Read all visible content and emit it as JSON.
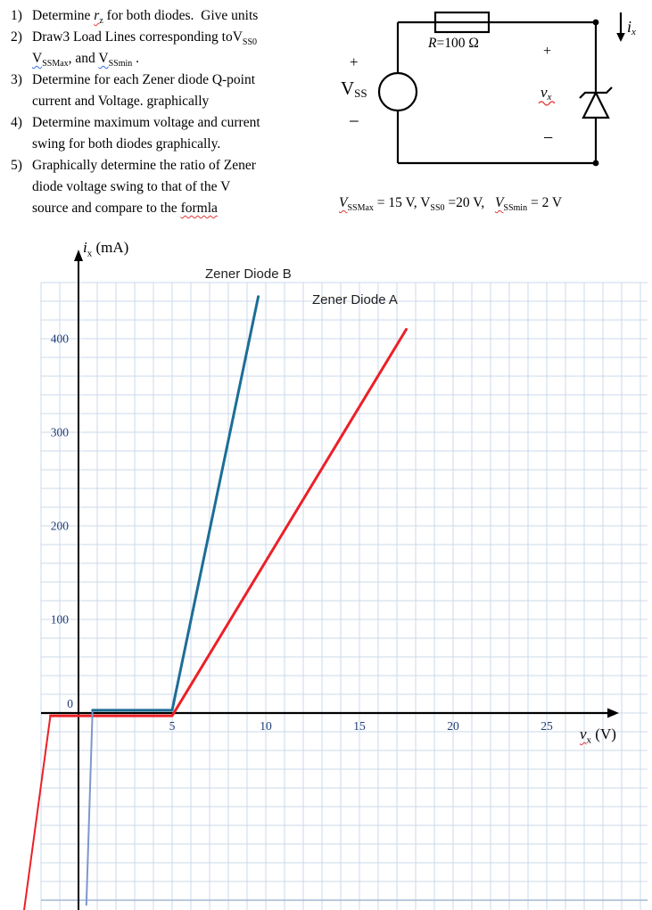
{
  "problems": {
    "n1": "1)",
    "n2": "2)",
    "n3": "3)",
    "n4": "4)",
    "n5": "5)",
    "p1_a": "Determine ",
    "p1_rz_base": "r",
    "p1_rz_sub": "z",
    "p1_b": " for both diodes.  Give units",
    "p2_l1a": "Draw3 Load Lines corresponding toV",
    "p2_l1sub": "SS0",
    "p2_l2a": "V",
    "p2_l2asub": "SSMax",
    "p2_l2b": ", and ",
    "p2_l2c": "V",
    "p2_l2csub": "SSmin",
    "p2_l2d": " .",
    "p3_l1": "Determine for each Zener diode Q-point",
    "p3_l2": "current and Voltage. graphically",
    "p4_l1": "Determine maximum voltage and current",
    "p4_l2": "swing for both diodes graphically.",
    "p5_l1": "Graphically determine the ratio of Zener",
    "p5_l2": "diode voltage swing to that of the V",
    "p5_l3a": "source and compare to the ",
    "p5_l3b": "formla"
  },
  "circuit": {
    "resistor_base": "R",
    "resistor_val": "=100 Ω",
    "plus": "+",
    "minus": "−",
    "vss_base": "V",
    "vss_sub": "SS",
    "ix_base": "i",
    "ix_sub": "x",
    "vx_plus": "+",
    "vx_base": "v",
    "vx_sub": "x",
    "vx_minus": "−"
  },
  "params": {
    "v1": "V",
    "v1s": "SSMax",
    "eq1": " = 15 V, ",
    "v2": "V",
    "v2s": "SS0",
    "eq2": " =20 V,   ",
    "v3": "V",
    "v3s": "SSmin",
    "eq3": " = 2 V"
  },
  "chart_labels": {
    "y_base": "i",
    "y_sub": "x",
    "y_unit": " (mA)",
    "x_base": "v",
    "x_sub": "x",
    "x_unit": " (V)"
  },
  "chart_data": {
    "type": "line",
    "title": "",
    "xlabel": "vx (V)",
    "ylabel": "ix (mA)",
    "x_ticks": [
      5,
      10,
      15,
      20,
      25
    ],
    "y_ticks": [
      400,
      300,
      200,
      100,
      0
    ],
    "xlim": [
      -2,
      30
    ],
    "ylim": [
      -215,
      465
    ],
    "grid": true,
    "grid_step": {
      "x_volts": 1,
      "y_mA": 20
    },
    "legend": "inline-labels",
    "colors": {
      "grid": "#cbd8ea",
      "grid_dark": "#a3b8d4",
      "axis": "#000000",
      "tick": "#1e3c78"
    },
    "series": [
      {
        "name": "Zener Diode A",
        "color": "#ec2027",
        "segments": [
          {
            "kind": "reverse-steep",
            "points": [
              [
                -2.9,
                -210
              ],
              [
                -1.5,
                -3
              ]
            ]
          },
          {
            "kind": "main",
            "points": [
              [
                -1.5,
                -3
              ],
              [
                5,
                -3
              ],
              [
                17.5,
                410
              ]
            ]
          }
        ]
      },
      {
        "name": "Zener Diode B",
        "color": "#1c6e96",
        "reverse_color": "#7d97cc",
        "segments": [
          {
            "kind": "reverse-steep",
            "points": [
              [
                0.42,
                -205
              ],
              [
                0.75,
                3
              ]
            ]
          },
          {
            "kind": "main",
            "points": [
              [
                0.75,
                3
              ],
              [
                5,
                3
              ],
              [
                9.6,
                445
              ]
            ]
          }
        ]
      }
    ]
  }
}
